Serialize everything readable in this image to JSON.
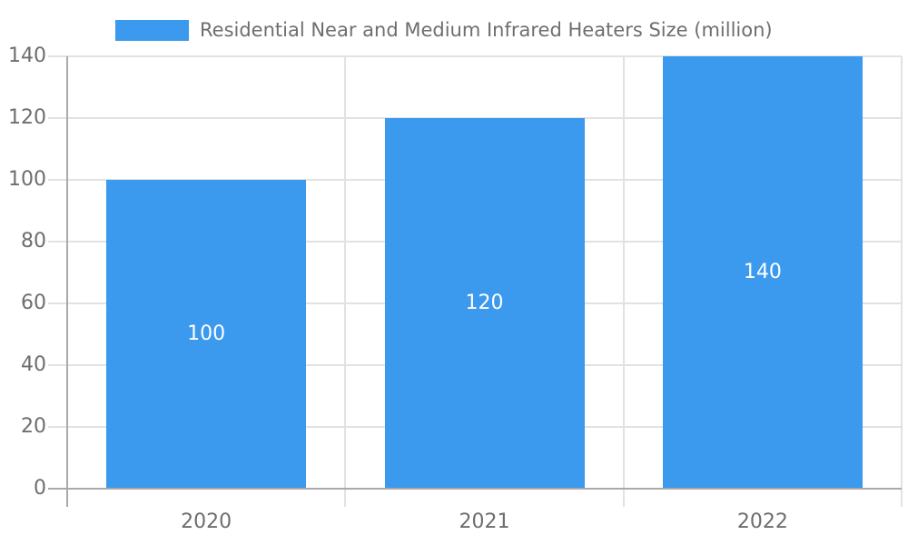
{
  "chart_data": {
    "type": "bar",
    "title": "",
    "legend_position": "top-center",
    "grid": "on",
    "categories": [
      "2020",
      "2021",
      "2022"
    ],
    "series": [
      {
        "name": "Residential Near and Medium Infrared Heaters Size (million)",
        "values": [
          100,
          120,
          140
        ],
        "color": "#3B99EE"
      }
    ],
    "data_labels": [
      "100",
      "120",
      "140"
    ],
    "y_axis": {
      "ticks": [
        "0",
        "20",
        "40",
        "60",
        "80",
        "100",
        "120",
        "140"
      ],
      "tick_values": [
        0,
        20,
        40,
        60,
        80,
        100,
        120,
        140
      ],
      "min": 0,
      "max": 140
    },
    "x_axis": {
      "ticks": [
        "2020",
        "2021",
        "2022"
      ]
    },
    "colors": {
      "bar": "#3B99EE",
      "gridline": "#E2E2E2",
      "axis_line": "#A9A9A9",
      "tick_label": "#6E6E6E",
      "legend_text": "#6E6E6E",
      "data_label": "#FFFFFF",
      "background": "#FFFFFF"
    }
  }
}
